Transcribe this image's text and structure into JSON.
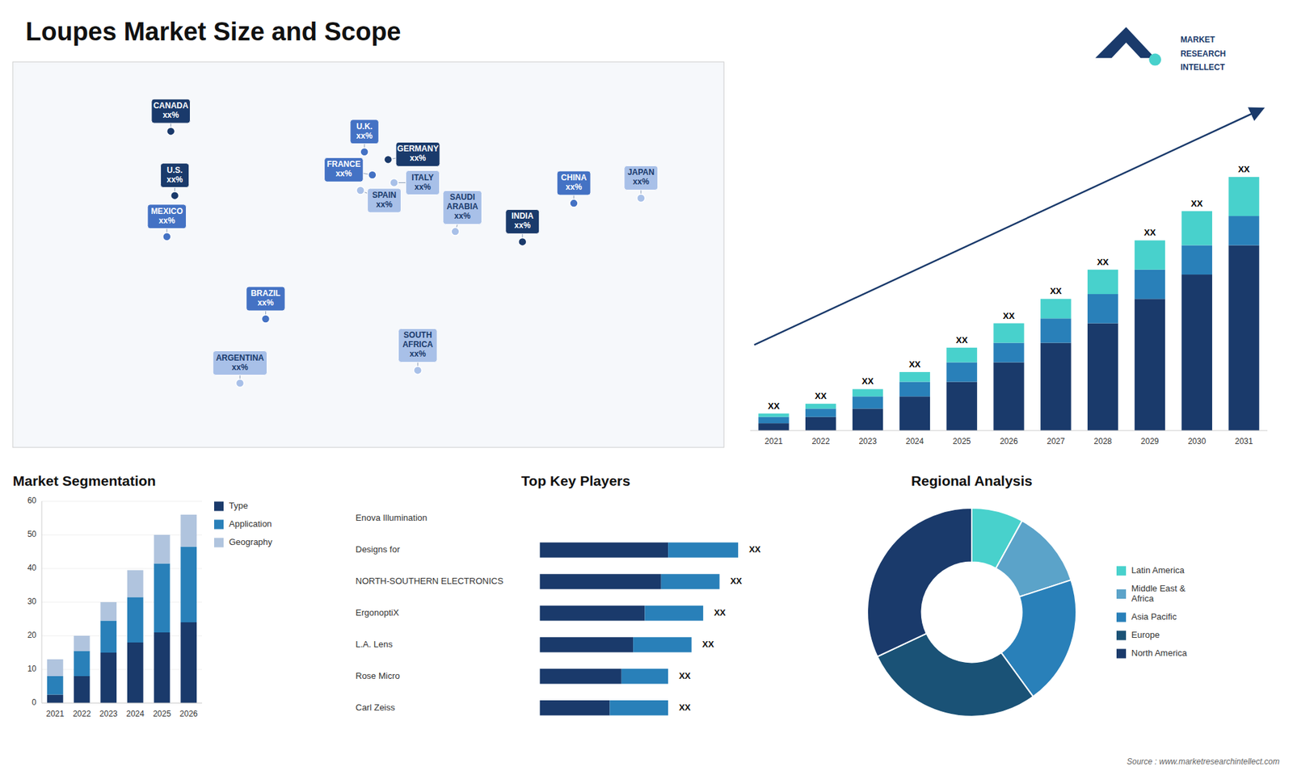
{
  "title": "Loupes Market Size and Scope",
  "annotations": [
    "MARKET",
    "RESEARCH",
    "INTELLECT",
    "Source : www.marketresearchintellect.com"
  ],
  "chart_data": [
    {
      "type": "map",
      "categories": [
        "CANADA\nxx%",
        "U.S.\nxx%",
        "MEXICO\nxx%",
        "BRAZIL\nxx%",
        "ARGENTINA\nxx%",
        "U.K.\nxx%",
        "FRANCE\nxx%",
        "GERMANY\nxx%",
        "SPAIN\nxx%",
        "ITALY\nxx%",
        "SAUDI\nARABIA\nxx%",
        "SOUTH\nAFRICA\nxx%",
        "CHINA\nxx%",
        "INDIA\nxx%",
        "JAPAN\nxx%"
      ],
      "x": [
        -100,
        -98,
        -102,
        -52,
        -65,
        -2,
        2,
        10,
        -4,
        13,
        44,
        25,
        104,
        78,
        138
      ],
      "y": [
        63,
        38,
        22,
        -10,
        -35,
        55,
        46,
        52,
        40,
        43,
        24,
        -30,
        35,
        20,
        37
      ],
      "colors": [
        "#1a3a6b",
        "#1a3a6b",
        "#4472c4",
        "#4472c4",
        "#a8c0e8",
        "#4472c4",
        "#4472c4",
        "#1a3a6b",
        "#a8c0e8",
        "#a8c0e8",
        "#a8c0e8",
        "#a8c0e8",
        "#4472c4",
        "#1a3a6b",
        "#a8c0e8"
      ],
      "xlim": [
        -180,
        180
      ],
      "ylim": [
        -60,
        90
      ],
      "tick_labels": false
    },
    {
      "type": "bar",
      "stacked": true,
      "categories": [
        "2021",
        "2022",
        "2023",
        "2024",
        "2025",
        "2026",
        "2027",
        "2028",
        "2029",
        "2030",
        "2031"
      ],
      "series": [
        {
          "color": "#1a3a6b",
          "values": [
            1.5,
            2.8,
            4.5,
            7,
            10,
            14,
            18,
            22,
            27,
            32,
            38
          ]
        },
        {
          "color": "#2980b9",
          "values": [
            1.3,
            1.7,
            2.5,
            3,
            4,
            4,
            5,
            6,
            6,
            6,
            6
          ]
        },
        {
          "color": "#48d1cc",
          "values": [
            0.7,
            1,
            1.5,
            2,
            3,
            4,
            4,
            5,
            6,
            7,
            8
          ]
        }
      ],
      "ylim": [
        0,
        67.6
      ],
      "tick_labels": "x",
      "grid": false,
      "annotations": [
        "XX",
        "XX",
        "XX",
        "XX",
        "XX",
        "XX",
        "XX",
        "XX",
        "XX",
        "XX",
        "XX"
      ]
    },
    {
      "type": "bar",
      "stacked": true,
      "title": "Market Segmentation",
      "categories": [
        "2021",
        "2022",
        "2023",
        "2024",
        "2025",
        "2026"
      ],
      "series": [
        {
          "name": "Type",
          "color": "#1a3a6b",
          "values": [
            2.5,
            8,
            15,
            18,
            21,
            24
          ]
        },
        {
          "name": "Application",
          "color": "#2980b9",
          "values": [
            5.5,
            7.5,
            9.5,
            13.5,
            20.5,
            22.5
          ]
        },
        {
          "name": "Geography",
          "color": "#b0c4de",
          "values": [
            5,
            4.5,
            5.5,
            8,
            8.5,
            9.5
          ]
        }
      ],
      "ylim": [
        0,
        60
      ],
      "yticks": [
        0,
        10,
        20,
        30,
        40,
        50,
        60
      ],
      "grid": true,
      "legend": "right"
    },
    {
      "type": "bar",
      "orientation": "horizontal",
      "stacked": true,
      "title": "Top Key Players",
      "categories": [
        "Enova Illumination",
        "Designs for",
        "NORTH-SOUTHERN ELECTRONICS",
        "ErgonoptiX",
        "L.A. Lens",
        "Rose Micro",
        "Carl Zeiss"
      ],
      "series": [
        {
          "color": "#1a3a6b",
          "values": [
            0,
            5.5,
            5.2,
            4.5,
            4.0,
            3.5,
            3.0
          ]
        },
        {
          "color": "#2980b9",
          "values": [
            0,
            3.0,
            2.5,
            2.5,
            2.5,
            2.0,
            2.5
          ]
        }
      ],
      "xlim": [
        0,
        8.5
      ],
      "tick_labels": "y",
      "annotations": [
        null,
        "XX",
        "XX",
        "XX",
        "XX",
        "XX",
        "XX"
      ]
    },
    {
      "type": "pie",
      "title": "Regional Analysis",
      "categories": [
        "Latin America",
        "Middle East &\nAfrica",
        "Asia Pacific",
        "Europe",
        "North America"
      ],
      "values": [
        8,
        12,
        20,
        28,
        32
      ],
      "colors": [
        "#48d1cc",
        "#5ba3c9",
        "#2980b9",
        "#1a5276",
        "#1a3a6b"
      ],
      "legend": "right"
    }
  ]
}
